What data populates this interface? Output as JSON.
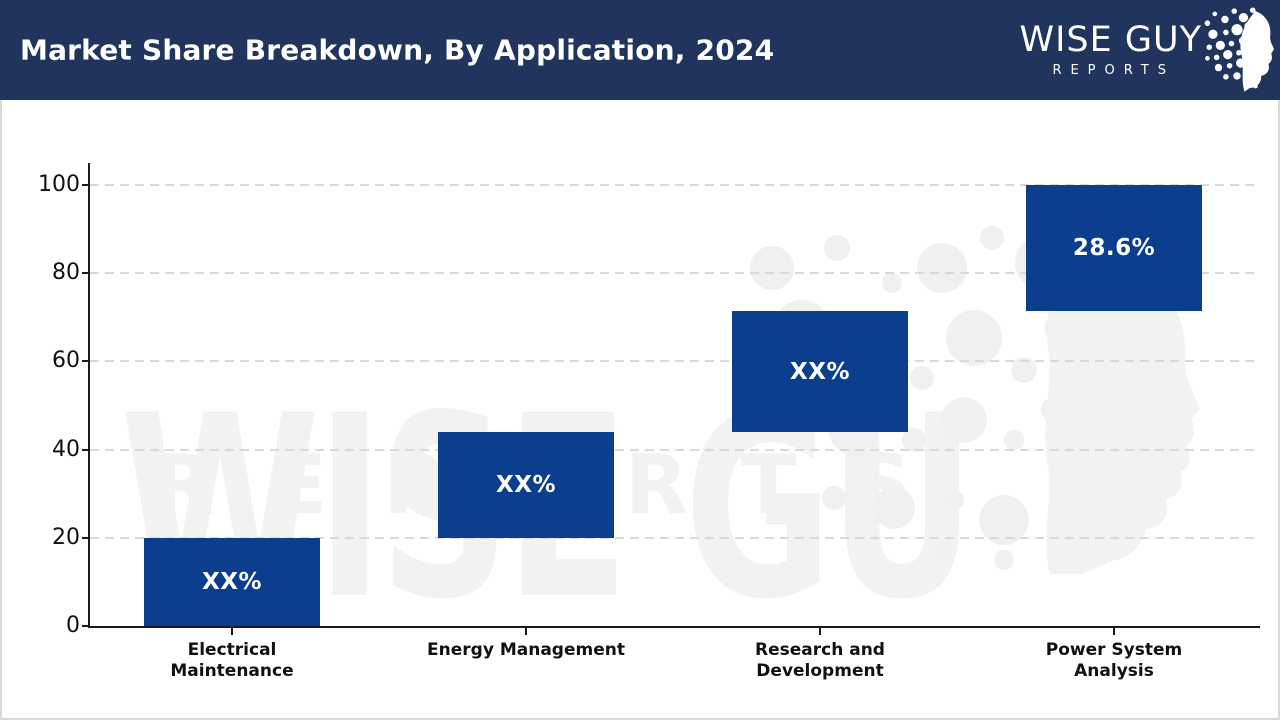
{
  "header": {
    "title": "Market Share Breakdown, By Application, 2024",
    "logo": {
      "line1": "WISE GUY",
      "line2": "REPORTS"
    }
  },
  "watermark": {
    "line1": "WISE GU",
    "line2": "REPORTS"
  },
  "chart_data": {
    "type": "bar",
    "variant": "floating-waterfall",
    "title": "Market Share Breakdown, By Application, 2024",
    "categories": [
      {
        "name": "Electrical Maintenance",
        "label_lines": [
          "Electrical",
          "Maintenance"
        ]
      },
      {
        "name": "Energy Management",
        "label_lines": [
          "Energy Management"
        ]
      },
      {
        "name": "Research and Development",
        "label_lines": [
          "Research and",
          "Development"
        ]
      },
      {
        "name": "Power System Analysis",
        "label_lines": [
          "Power System",
          "Analysis"
        ]
      }
    ],
    "bars": [
      {
        "category": "Electrical Maintenance",
        "start": 0,
        "end": 20,
        "label": "XX%"
      },
      {
        "category": "Energy Management",
        "start": 20,
        "end": 44,
        "label": "XX%"
      },
      {
        "category": "Research and Development",
        "start": 44,
        "end": 71.4,
        "label": "XX%"
      },
      {
        "category": "Power System Analysis",
        "start": 71.4,
        "end": 100,
        "label": "28.6%"
      }
    ],
    "xlabel": "",
    "ylabel": "",
    "yticks": [
      0,
      20,
      40,
      60,
      80,
      100
    ],
    "ylim": [
      0,
      105
    ],
    "grid": "horizontal-dashed",
    "legend": "none",
    "bar_color": "#0c3e8e",
    "bar_label_color": "#ffffff",
    "axis_color": "#1a1a1a",
    "grid_color": "#d9d9d9"
  },
  "colors": {
    "header_bg": "#20345e",
    "header_text": "#ffffff",
    "watermark": "#f2f2f2",
    "border": "#d9d9d9"
  }
}
